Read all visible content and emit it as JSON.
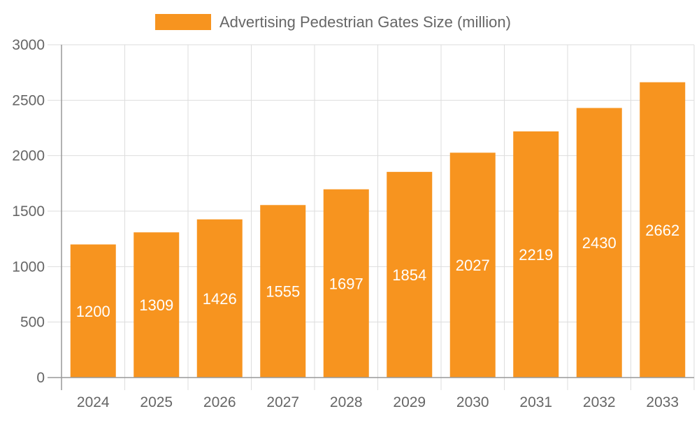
{
  "chart_data": {
    "type": "bar",
    "categories": [
      "2024",
      "2025",
      "2026",
      "2027",
      "2028",
      "2029",
      "2030",
      "2031",
      "2032",
      "2033"
    ],
    "series": [
      {
        "name": "Advertising Pedestrian Gates Size (million)",
        "values": [
          1200,
          1309,
          1426,
          1555,
          1697,
          1854,
          2027,
          2219,
          2430,
          2662
        ],
        "color": "#f7941f"
      }
    ],
    "ylim": [
      0,
      3000
    ],
    "yticks": [
      0,
      500,
      1000,
      1500,
      2000,
      2500,
      3000
    ],
    "grid": true,
    "legend": "top",
    "data_labels": true
  }
}
